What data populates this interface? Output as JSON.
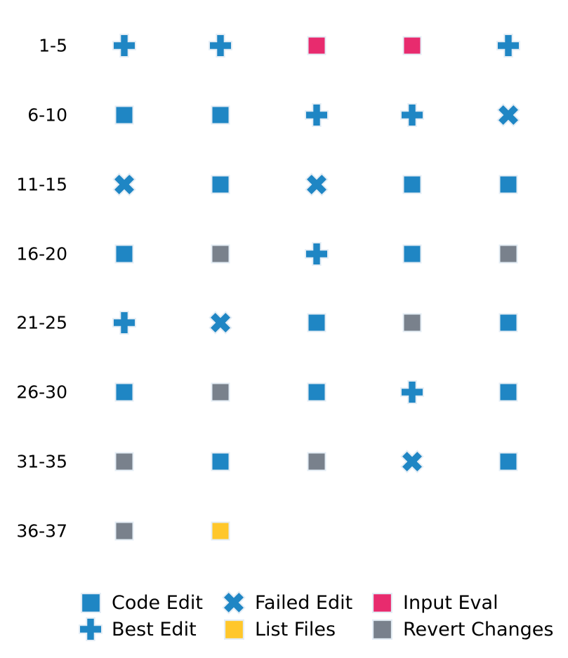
{
  "chart_data": {
    "type": "scatter",
    "title": "",
    "xlabel": "",
    "ylabel": "",
    "grid_lines": false,
    "background": "#ffffff",
    "marker_edge_color": "#E4EDF5",
    "text_color": "#000000",
    "rows": [
      "1-5",
      "6-10",
      "11-15",
      "16-20",
      "21-25",
      "26-30",
      "31-35",
      "36-37"
    ],
    "columns_per_row": 5,
    "grid": [
      [
        "best_edit",
        "best_edit",
        "input_eval",
        "input_eval",
        "best_edit"
      ],
      [
        "code_edit",
        "code_edit",
        "best_edit",
        "best_edit",
        "failed_edit"
      ],
      [
        "failed_edit",
        "code_edit",
        "failed_edit",
        "code_edit",
        "code_edit"
      ],
      [
        "code_edit",
        "revert_changes",
        "best_edit",
        "code_edit",
        "revert_changes"
      ],
      [
        "best_edit",
        "failed_edit",
        "code_edit",
        "revert_changes",
        "code_edit"
      ],
      [
        "code_edit",
        "revert_changes",
        "code_edit",
        "best_edit",
        "code_edit"
      ],
      [
        "revert_changes",
        "code_edit",
        "revert_changes",
        "failed_edit",
        "code_edit"
      ],
      [
        "revert_changes",
        "list_files",
        null,
        null,
        null
      ]
    ],
    "series": {
      "code_edit": {
        "label": "Code Edit",
        "marker": "square",
        "color": "#1F86C4"
      },
      "failed_edit": {
        "label": "Failed Edit",
        "marker": "x",
        "color": "#1F86C4"
      },
      "input_eval": {
        "label": "Input Eval",
        "marker": "square",
        "color": "#E82B6E"
      },
      "best_edit": {
        "label": "Best Edit",
        "marker": "plus",
        "color": "#1F86C4"
      },
      "list_files": {
        "label": "List Files",
        "marker": "square",
        "color": "#FFC72B"
      },
      "revert_changes": {
        "label": "Revert Changes",
        "marker": "square",
        "color": "#79818C"
      }
    },
    "legend": {
      "position": "bottom",
      "rows": [
        [
          "code_edit",
          "failed_edit",
          "input_eval"
        ],
        [
          "best_edit",
          "list_files",
          "revert_changes"
        ]
      ]
    }
  }
}
